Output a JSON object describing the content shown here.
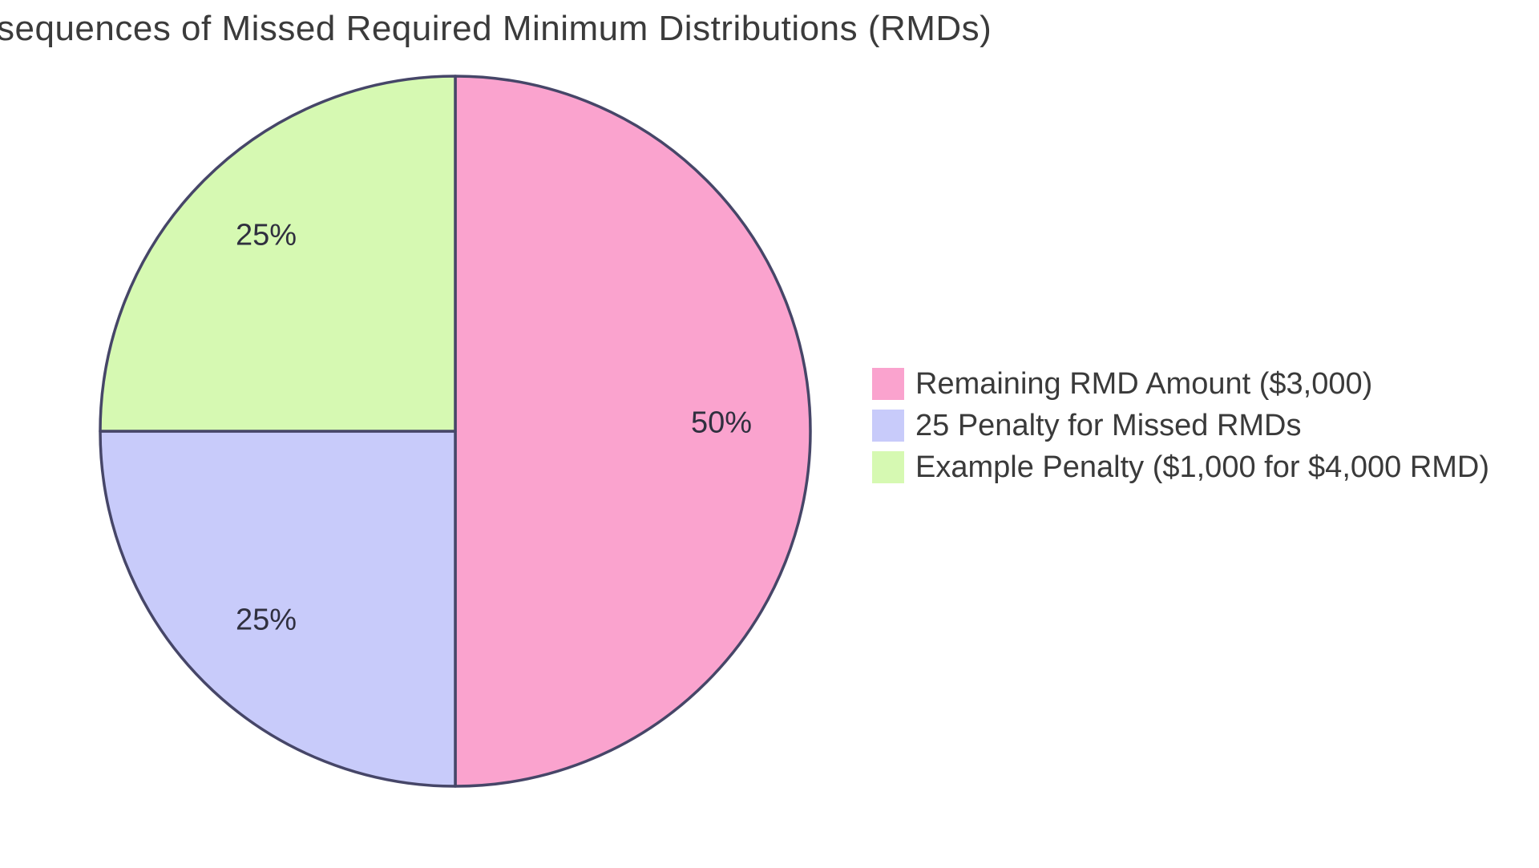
{
  "chart": {
    "visible_title": "sequences of Missed Required Minimum Distributions (RMDs)",
    "title_color": "#3b3b3b",
    "background_color": "#ffffff"
  },
  "chart_data": {
    "type": "pie",
    "title": "sequences of Missed Required Minimum Distributions (RMDs)",
    "direction": "clockwise",
    "start_angle_deg": 0,
    "legend_position": "right",
    "stroke_color": "#464668",
    "stroke_width": 3.5,
    "slices": [
      {
        "label": "Remaining RMD Amount ($3,000)",
        "value": 50,
        "pct_label": "50%",
        "color": "#FAA3CE"
      },
      {
        "label": "25 Penalty for Missed RMDs",
        "value": 25,
        "pct_label": "25%",
        "color": "#C8CBFA"
      },
      {
        "label": "Example Penalty ($1,000 for $4,000 RMD)",
        "value": 25,
        "pct_label": "25%",
        "color": "#D6F9B2"
      }
    ]
  },
  "legend": {
    "items": [
      {
        "label": "Remaining RMD Amount ($3,000)"
      },
      {
        "label": "25 Penalty for Missed RMDs"
      },
      {
        "label": "Example Penalty ($1,000 for $4,000 RMD)"
      }
    ]
  }
}
